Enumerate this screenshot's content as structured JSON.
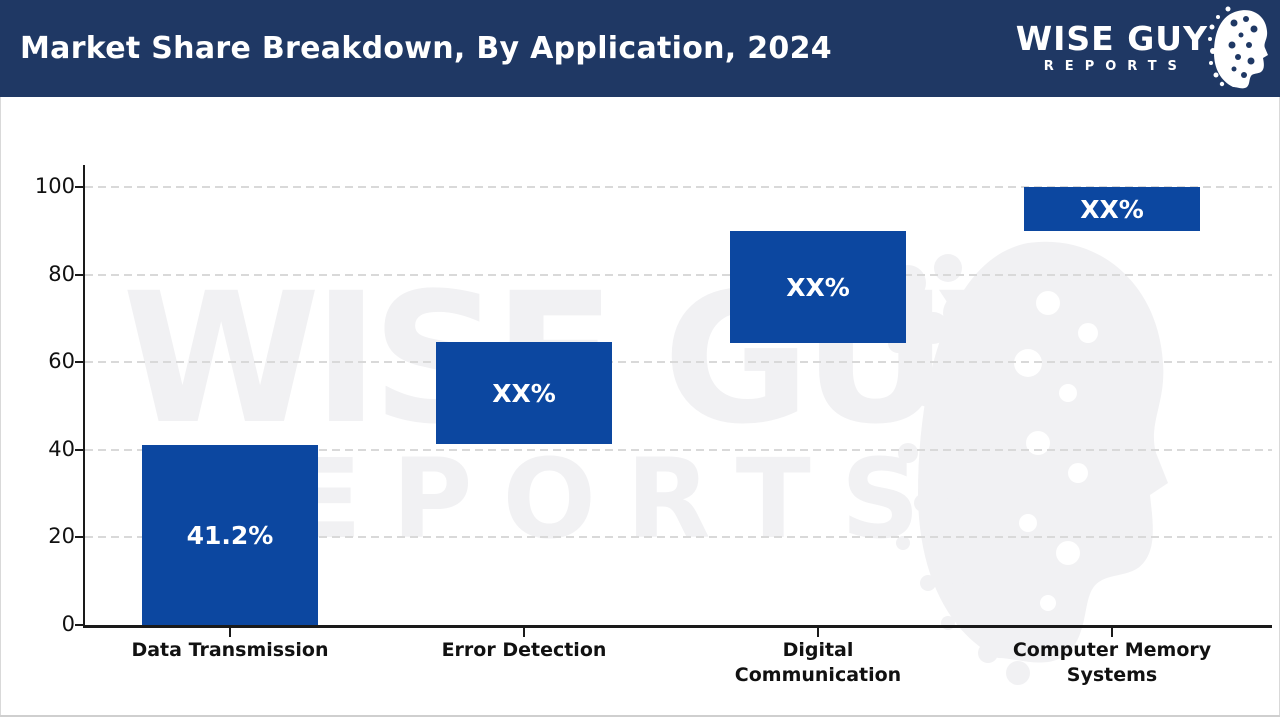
{
  "header": {
    "title": "Market Share Breakdown, By Application, 2024",
    "brand_line1": "WISE GUY",
    "brand_line2": "REPORTS"
  },
  "watermark": {
    "line1": "WISE GUY",
    "line2": "REPORTS"
  },
  "chart_data": {
    "type": "bar",
    "subtype": "floating-waterfall",
    "title": "Market Share Breakdown, By Application, 2024",
    "categories": [
      "Data Transmission",
      "Error Detection",
      "Digital Communication",
      "Computer Memory Systems"
    ],
    "categories_lines": [
      [
        "Data Transmission"
      ],
      [
        "Error Detection"
      ],
      [
        "Digital",
        "Communication"
      ],
      [
        "Computer Memory",
        "Systems"
      ]
    ],
    "segments": [
      {
        "category": "Data Transmission",
        "start": 0,
        "end": 41.2,
        "label": "41.2%"
      },
      {
        "category": "Error Detection",
        "start": 41.2,
        "end": 64.5,
        "label": "XX%"
      },
      {
        "category": "Digital Communication",
        "start": 64.5,
        "end": 90,
        "label": "XX%"
      },
      {
        "category": "Computer Memory Systems",
        "start": 90,
        "end": 100,
        "label": "XX%"
      }
    ],
    "ylim": [
      0,
      100
    ],
    "yticks": [
      0,
      20,
      40,
      60,
      80,
      100
    ],
    "ytick_labels": [
      "0",
      "20",
      "40",
      "60",
      "80",
      "100"
    ],
    "xlabel": "",
    "ylabel": "",
    "grid": "horizontal-dashed",
    "legend": "none",
    "colors": {
      "bar": "#0C47A0",
      "bar_label": "#FFFFFF",
      "header_bg": "#1F3864",
      "header_text": "#FFFFFF",
      "grid": "#D9D9D9",
      "axis": "#1A1A1A",
      "watermark": "#F1F1F3"
    }
  }
}
